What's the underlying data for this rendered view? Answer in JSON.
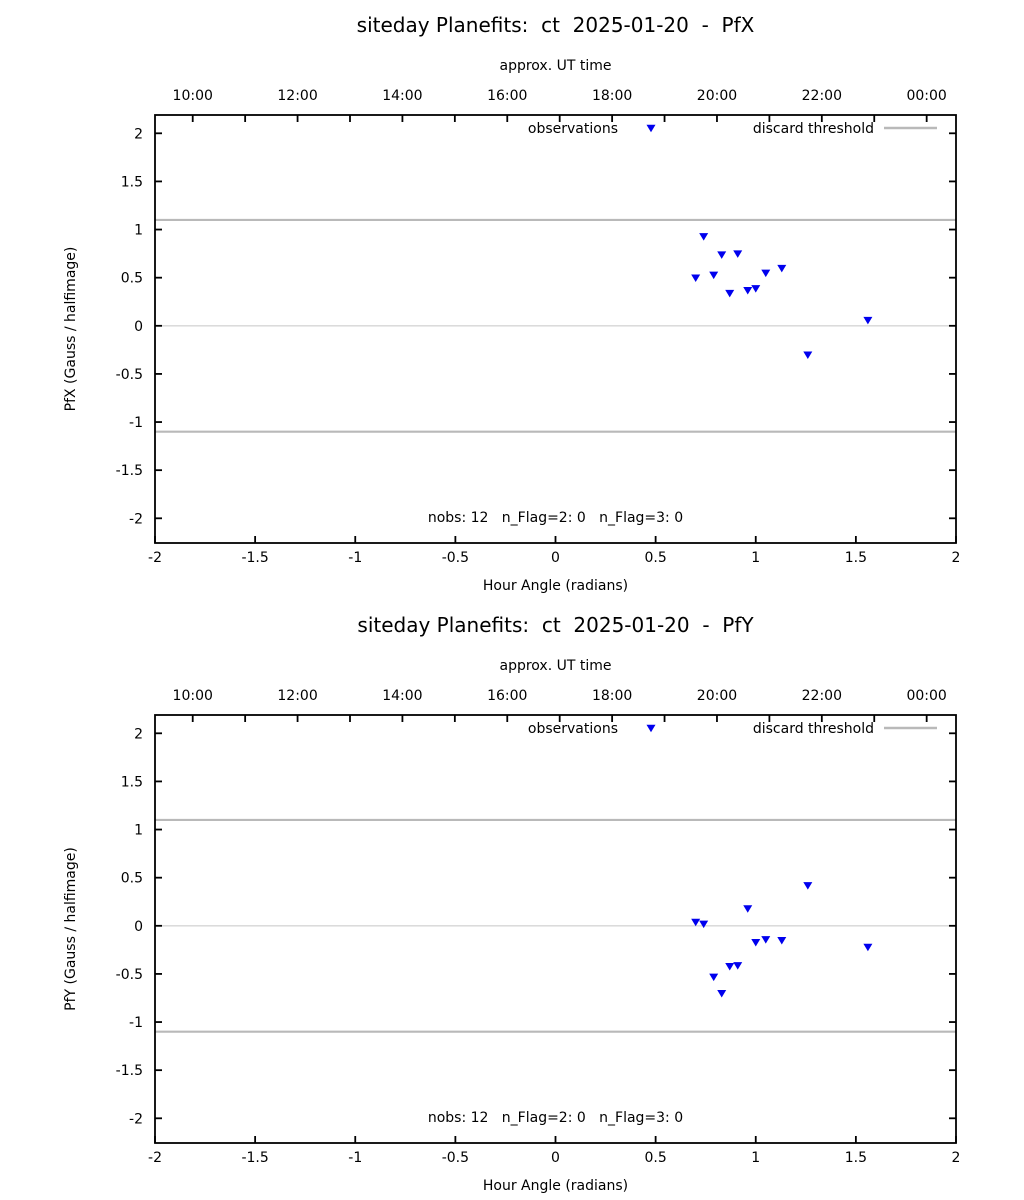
{
  "colors": {
    "observation": "#0000ee",
    "threshold_line": "#b9b9b9",
    "zero_line": "#d6d6d6",
    "frame": "#000000",
    "background": "#ffffff"
  },
  "chart_data": [
    {
      "type": "scatter",
      "title": "siteday Planefits:  ct  2025-01-20  -  PfX",
      "x2label": "approx. UT time",
      "xlabel": "Hour Angle (radians)",
      "ylabel": "PfX (Gauss / halfimage)",
      "xlim": [
        -2,
        2
      ],
      "ylim": [
        -2.2,
        2.2
      ],
      "grid": false,
      "legend_position": "top-inside",
      "legend": {
        "observations": "observations",
        "threshold": "discard threshold"
      },
      "stats": "nobs: 12   n_Flag=2: 0   n_Flag=3: 0",
      "thresholds": [
        1.1,
        -1.1
      ],
      "zero_line": 0,
      "x_ticks": [
        {
          "v": -2,
          "label": "-2"
        },
        {
          "v": -1.5,
          "label": "-1.5"
        },
        {
          "v": -1,
          "label": "-1"
        },
        {
          "v": -0.5,
          "label": "-0.5"
        },
        {
          "v": 0,
          "label": "0"
        },
        {
          "v": 0.5,
          "label": "0.5"
        },
        {
          "v": 1,
          "label": "1"
        },
        {
          "v": 1.5,
          "label": "1.5"
        },
        {
          "v": 2,
          "label": "2"
        }
      ],
      "y_ticks": [
        {
          "v": 2,
          "label": "2"
        },
        {
          "v": 1.5,
          "label": "1.5"
        },
        {
          "v": 1,
          "label": "1"
        },
        {
          "v": 0.5,
          "label": "0.5"
        },
        {
          "v": 0,
          "label": "0"
        },
        {
          "v": -0.5,
          "label": "-0.5"
        },
        {
          "v": -1,
          "label": "-1"
        },
        {
          "v": -1.5,
          "label": "-1.5"
        },
        {
          "v": -2,
          "label": "-2"
        }
      ],
      "x2_major_ticks": [
        {
          "hour": 10,
          "label": "10:00"
        },
        {
          "hour": 12,
          "label": "12:00"
        },
        {
          "hour": 14,
          "label": "14:00"
        },
        {
          "hour": 16,
          "label": "16:00"
        },
        {
          "hour": 18,
          "label": "18:00"
        },
        {
          "hour": 20,
          "label": "20:00"
        },
        {
          "hour": 22,
          "label": "22:00"
        },
        {
          "hour": 24,
          "label": "00:00"
        }
      ],
      "x2_minor_hours": [
        10,
        11,
        12,
        13,
        14,
        15,
        16,
        17,
        18,
        19,
        20,
        21,
        22,
        23,
        24
      ],
      "x2_transit_ut_hour": 16.92,
      "series": [
        {
          "name": "observations",
          "marker": "triangle-down",
          "points": [
            [
              0.7,
              0.5
            ],
            [
              0.74,
              0.93
            ],
            [
              0.79,
              0.53
            ],
            [
              0.83,
              0.74
            ],
            [
              0.87,
              0.34
            ],
            [
              0.91,
              0.75
            ],
            [
              0.96,
              0.37
            ],
            [
              1.0,
              0.39
            ],
            [
              1.05,
              0.55
            ],
            [
              1.13,
              0.6
            ],
            [
              1.26,
              -0.3
            ],
            [
              1.56,
              0.06
            ]
          ]
        }
      ]
    },
    {
      "type": "scatter",
      "title": "siteday Planefits:  ct  2025-01-20  -  PfY",
      "x2label": "approx. UT time",
      "xlabel": "Hour Angle (radians)",
      "ylabel": "PfY (Gauss / halfimage)",
      "xlim": [
        -2,
        2
      ],
      "ylim": [
        -2.2,
        2.2
      ],
      "grid": false,
      "legend_position": "top-inside",
      "legend": {
        "observations": "observations",
        "threshold": "discard threshold"
      },
      "stats": "nobs: 12   n_Flag=2: 0   n_Flag=3: 0",
      "thresholds": [
        1.1,
        -1.1
      ],
      "zero_line": 0,
      "x_ticks": [
        {
          "v": -2,
          "label": "-2"
        },
        {
          "v": -1.5,
          "label": "-1.5"
        },
        {
          "v": -1,
          "label": "-1"
        },
        {
          "v": -0.5,
          "label": "-0.5"
        },
        {
          "v": 0,
          "label": "0"
        },
        {
          "v": 0.5,
          "label": "0.5"
        },
        {
          "v": 1,
          "label": "1"
        },
        {
          "v": 1.5,
          "label": "1.5"
        },
        {
          "v": 2,
          "label": "2"
        }
      ],
      "y_ticks": [
        {
          "v": 2,
          "label": "2"
        },
        {
          "v": 1.5,
          "label": "1.5"
        },
        {
          "v": 1,
          "label": "1"
        },
        {
          "v": 0.5,
          "label": "0.5"
        },
        {
          "v": 0,
          "label": "0"
        },
        {
          "v": -0.5,
          "label": "-0.5"
        },
        {
          "v": -1,
          "label": "-1"
        },
        {
          "v": -1.5,
          "label": "-1.5"
        },
        {
          "v": -2,
          "label": "-2"
        }
      ],
      "x2_major_ticks": [
        {
          "hour": 10,
          "label": "10:00"
        },
        {
          "hour": 12,
          "label": "12:00"
        },
        {
          "hour": 14,
          "label": "14:00"
        },
        {
          "hour": 16,
          "label": "16:00"
        },
        {
          "hour": 18,
          "label": "18:00"
        },
        {
          "hour": 20,
          "label": "20:00"
        },
        {
          "hour": 22,
          "label": "22:00"
        },
        {
          "hour": 24,
          "label": "00:00"
        }
      ],
      "x2_minor_hours": [
        10,
        11,
        12,
        13,
        14,
        15,
        16,
        17,
        18,
        19,
        20,
        21,
        22,
        23,
        24
      ],
      "x2_transit_ut_hour": 16.92,
      "series": [
        {
          "name": "observations",
          "marker": "triangle-down",
          "points": [
            [
              0.7,
              0.04
            ],
            [
              0.74,
              0.02
            ],
            [
              0.79,
              -0.53
            ],
            [
              0.83,
              -0.7
            ],
            [
              0.87,
              -0.42
            ],
            [
              0.91,
              -0.41
            ],
            [
              0.96,
              0.18
            ],
            [
              1.0,
              -0.17
            ],
            [
              1.05,
              -0.14
            ],
            [
              1.13,
              -0.15
            ],
            [
              1.26,
              0.42
            ],
            [
              1.56,
              -0.22
            ]
          ]
        }
      ]
    }
  ]
}
